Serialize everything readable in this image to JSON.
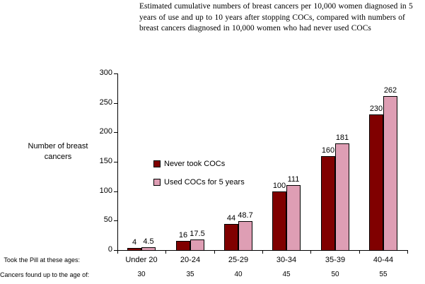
{
  "title_lines": [
    "Estimated cumulative numbers of breast cancers per 10,000 women diagnosed in 5",
    "years of use and up to 10 years after stopping COCs, compared with numbers of",
    "breast cancers diagnosed in 10,000 women who had never used COCs"
  ],
  "ylabel_lines": [
    "Number of breast",
    "cancers"
  ],
  "chart_data": {
    "type": "bar",
    "title": "Estimated cumulative numbers of breast cancers per 10,000 women diagnosed in 5 years of use and up to 10 years after stopping COCs, compared with numbers of breast cancers diagnosed in 10,000 women who had never used COCs",
    "categories": [
      "Under 20",
      "20-24",
      "25-29",
      "30-34",
      "35-39",
      "40-44"
    ],
    "series": [
      {
        "name": "Never took COCs",
        "color": "#800000",
        "values": [
          4,
          16,
          44,
          100,
          160,
          230
        ]
      },
      {
        "name": "Used COCs for 5 years",
        "color": "#DE9EB4",
        "values": [
          4.5,
          17.5,
          48.7,
          111,
          181,
          262
        ]
      }
    ],
    "x_row_label": "Took the Pill at these ages:",
    "secondary_row": {
      "label": "Cancers found up to the age of:",
      "values": [
        30,
        35,
        40,
        45,
        50,
        55
      ]
    },
    "ylabel": "Number of breast cancers",
    "ylim": [
      0,
      300
    ],
    "y_ticks": [
      0,
      50,
      100,
      150,
      200,
      250,
      300
    ],
    "grid": false,
    "legend_position": "inside-left-middle",
    "bar_labels_shown": true,
    "axis_color": "#000000",
    "background_color": "#ffffff"
  }
}
